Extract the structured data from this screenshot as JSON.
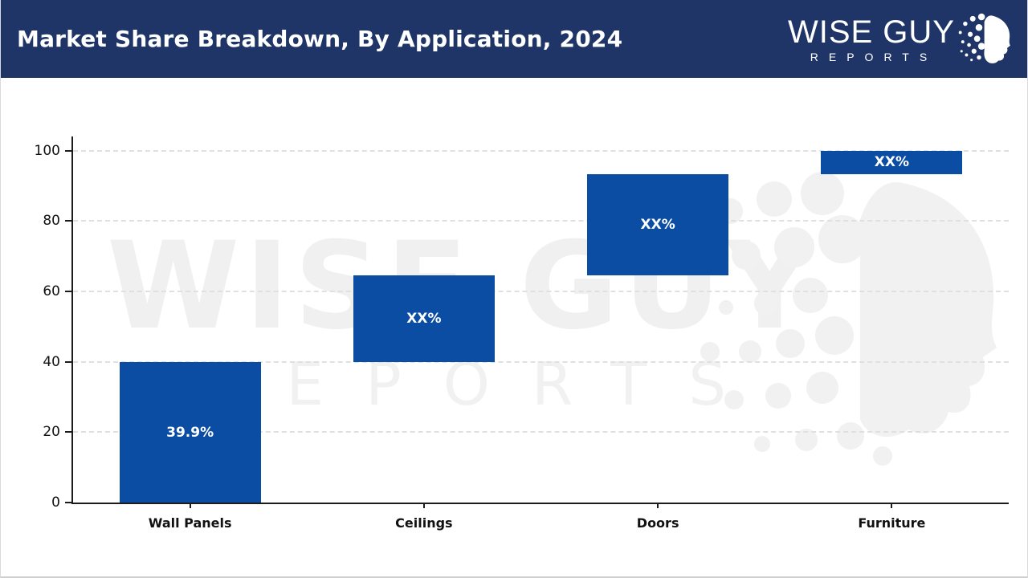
{
  "header": {
    "title": "Market Share Breakdown, By Application, 2024",
    "bg_color": "#1F3567",
    "logo": {
      "line1": "WISE GUY",
      "line2": "REPORTS",
      "icon": "dotted-face-profile"
    }
  },
  "watermark": {
    "line1": "WISE GUY",
    "line2": "REPORTS",
    "icon": "dotted-face-profile"
  },
  "chart_data": {
    "type": "bar",
    "subtype": "waterfall-floating-bars",
    "title": "Market Share Breakdown, By Application, 2024",
    "categories": [
      "Wall Panels",
      "Ceilings",
      "Doors",
      "Furniture"
    ],
    "series": [
      {
        "name": "Market share (%)",
        "starts": [
          0,
          39.9,
          64.5,
          93.3
        ],
        "ends": [
          39.9,
          64.5,
          93.3,
          100
        ],
        "segment_values": [
          39.9,
          24.6,
          28.8,
          6.7
        ],
        "bar_labels": [
          "39.9%",
          "XX%",
          "XX%",
          "XX%"
        ]
      }
    ],
    "xlabel": "",
    "ylabel": "",
    "ylim": [
      0,
      104
    ],
    "yticks": [
      0,
      20,
      40,
      60,
      80,
      100
    ],
    "grid": "horizontal-dashed",
    "legend": "none",
    "colors": {
      "bar": "#0B4DA2",
      "bar_label": "#FFFFFF",
      "axis": "#1C1C1C",
      "gridline": "#E0E0E0",
      "watermark": "#F0F0F0"
    }
  }
}
